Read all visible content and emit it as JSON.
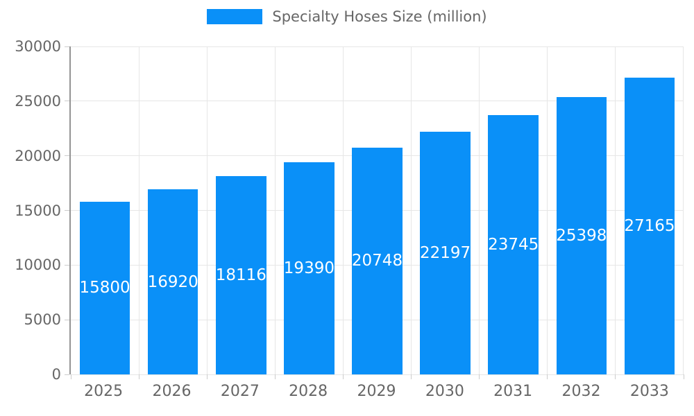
{
  "legend": {
    "label": "Specialty Hoses Size (million)"
  },
  "colors": {
    "bar": "#0a90f8",
    "axis_text": "#666666",
    "gridline": "#e6e6e6",
    "y_axis_line": "#949494",
    "tick_mark": "#cccccc",
    "bar_value_text": "#ffffff",
    "background": "#ffffff"
  },
  "chart_data": {
    "type": "bar",
    "title": "Specialty Hoses Size (million)",
    "categories": [
      "2025",
      "2026",
      "2027",
      "2028",
      "2029",
      "2030",
      "2031",
      "2032",
      "2033"
    ],
    "values": [
      15800,
      16920,
      18116,
      19390,
      20748,
      22197,
      23745,
      25398,
      27165
    ],
    "xlabel": "",
    "ylabel": "",
    "ylim": [
      0,
      30000
    ],
    "yticks": [
      0,
      5000,
      10000,
      15000,
      20000,
      25000,
      30000
    ],
    "grid": true,
    "legend_position": "top",
    "bar_label_position": "inside-middle",
    "bar_width_fraction": 0.74
  }
}
